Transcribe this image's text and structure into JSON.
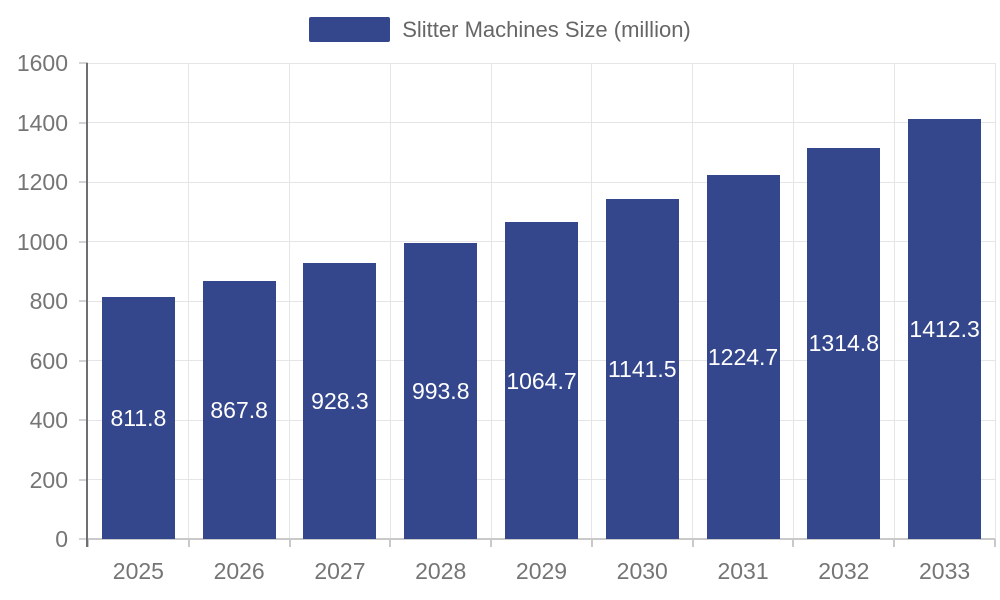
{
  "chart_data": {
    "type": "bar",
    "series_name": "Slitter Machines Size (million)",
    "categories": [
      "2025",
      "2026",
      "2027",
      "2028",
      "2029",
      "2030",
      "2031",
      "2032",
      "2033"
    ],
    "values": [
      811.8,
      867.8,
      928.3,
      993.8,
      1064.7,
      1141.5,
      1224.7,
      1314.8,
      1412.3
    ],
    "value_labels": [
      "811.8",
      "867.8",
      "928.3",
      "993.8",
      "1064.7",
      "1141.5",
      "1224.7",
      "1314.8",
      "1412.3"
    ],
    "title": "Slitter Machines Size (million)",
    "xlabel": "",
    "ylabel": "",
    "ylim": [
      0,
      1600
    ],
    "yticks": [
      0,
      200,
      400,
      600,
      800,
      1000,
      1200,
      1400,
      1600
    ],
    "grid": true,
    "legend_position": "top-center",
    "colors": {
      "bar": "#35478C",
      "bar_label": "#ffffff",
      "axis_text": "#757575",
      "legend_text": "#666666",
      "gridline": "#e5e5e8",
      "axis_line_left": "#6e6e73",
      "axis_line_bottom": "#c9c9c9",
      "tick_y": "#d4d4d4",
      "tick_x": "#c9c9c9",
      "background": "#ffffff"
    }
  }
}
